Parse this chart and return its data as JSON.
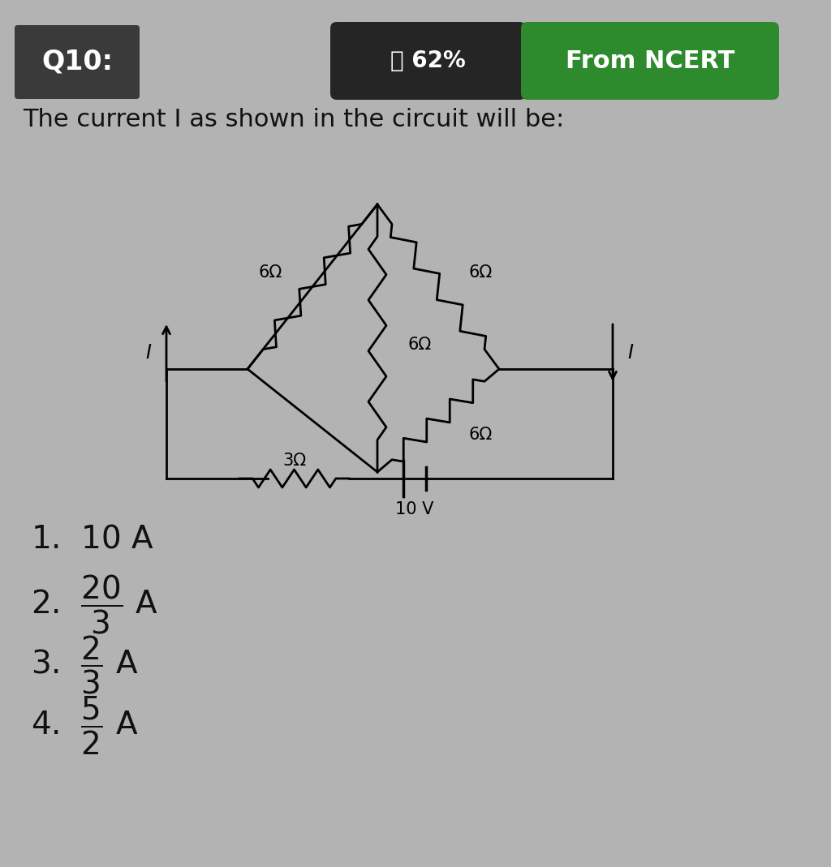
{
  "bg_color": "#b3b3b3",
  "title_text": "The current I as shown in the circuit will be:",
  "q10_label": "Q10:",
  "q10_bg": "#3a3a3a",
  "q10_text_color": "#ffffff",
  "like_bg": "#252525",
  "like_text": "  62%",
  "like_text_color": "#ffffff",
  "ncert_bg": "#2d8a2d",
  "ncert_text": "From NCERT",
  "ncert_text_color": "#ffffff",
  "fig_w": 10.24,
  "fig_h": 10.69,
  "dpi": 100
}
